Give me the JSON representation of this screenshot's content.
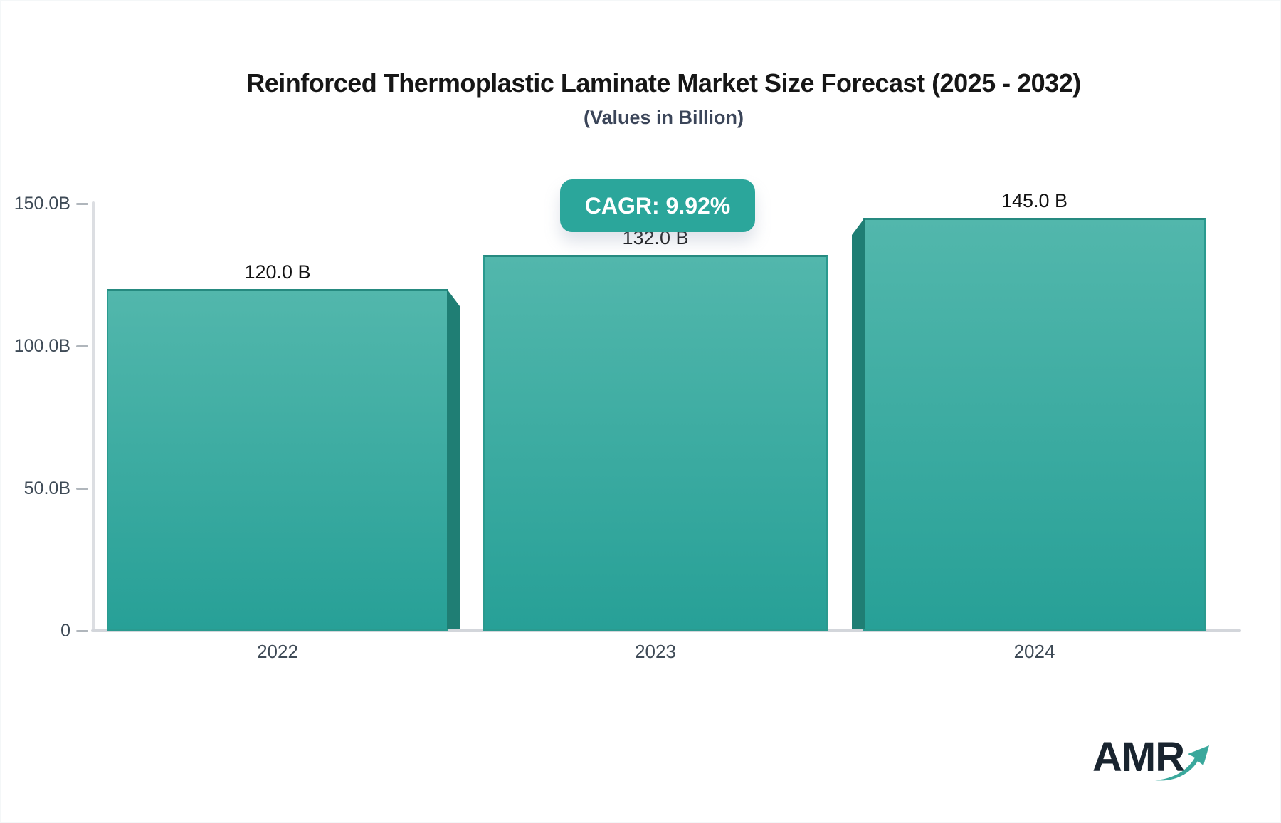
{
  "title": "Reinforced Thermoplastic Laminate Market Size Forecast (2025 - 2032)",
  "subtitle": "(Values in Billion)",
  "cagr_badge": {
    "label": "CAGR: 9.92%"
  },
  "logo": {
    "brand": "AMR",
    "icon": "growth-arrow-icon"
  },
  "colors": {
    "bar_top": "#52b7ac",
    "bar_bottom": "#27a097",
    "bar_side": "#1f7e74",
    "bar_border": "#2a9a8f",
    "badge_bg": "#2ba69b",
    "axis_line": "#dcdee2",
    "tick_text": "#3e4a56",
    "title_text": "#161616",
    "subtitle_text": "#3b4559",
    "logo_text": "#19242f",
    "logo_arrow": "#3aa89c"
  },
  "chart_data": {
    "type": "bar",
    "title": "Reinforced Thermoplastic Laminate Market Size Forecast (2025 - 2032)",
    "subtitle": "(Values in Billion)",
    "categories": [
      "2022",
      "2023",
      "2024"
    ],
    "values": [
      120.0,
      132.0,
      145.0
    ],
    "value_labels": [
      "120.0 B",
      "132.0 B",
      "145.0 B"
    ],
    "unit": "Billion (B)",
    "ylabel": "",
    "xlabel": "",
    "ylim": [
      0,
      150
    ],
    "yticks": [
      {
        "value": 150,
        "label": "150.0B"
      },
      {
        "value": 100,
        "label": "100.0B"
      },
      {
        "value": 50,
        "label": "50.0B"
      },
      {
        "value": 0,
        "label": "0"
      }
    ],
    "grid": false,
    "legend": false,
    "bar_style": "3d-beveled-gradient-teal",
    "annotations": [
      {
        "type": "badge",
        "text": "CAGR: 9.92%",
        "position": "above 2023 bar"
      }
    ]
  }
}
